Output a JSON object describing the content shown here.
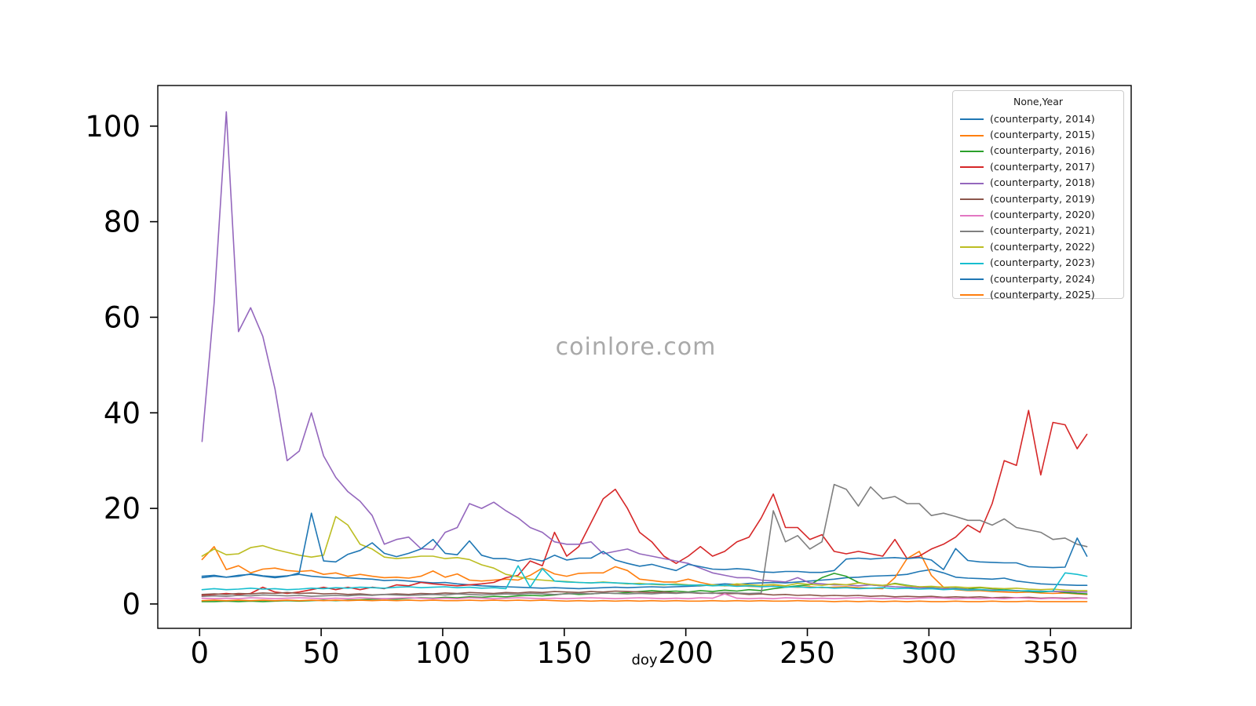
{
  "page": {
    "background": "#ffffff"
  },
  "watermark": {
    "text": "coinlore.com",
    "color": "#a9a9a9"
  },
  "chart_data": {
    "type": "line",
    "title": "",
    "xlabel": "doy",
    "ylabel": "",
    "xlim": [
      -17.2,
      383.2
    ],
    "ylim": [
      -5.1,
      108.5
    ],
    "x_ticks": [
      0,
      50,
      100,
      150,
      200,
      250,
      300,
      350
    ],
    "y_ticks": [
      0,
      20,
      40,
      60,
      80,
      100
    ],
    "grid": false,
    "axis_color": "#000000",
    "legend": {
      "title": "None,Year",
      "location": "upper right"
    },
    "x": [
      1,
      6,
      11,
      16,
      21,
      26,
      31,
      36,
      41,
      46,
      51,
      56,
      61,
      66,
      71,
      76,
      81,
      86,
      91,
      96,
      101,
      106,
      111,
      116,
      121,
      126,
      131,
      136,
      141,
      146,
      151,
      156,
      161,
      166,
      171,
      176,
      181,
      186,
      191,
      196,
      201,
      206,
      211,
      216,
      221,
      226,
      231,
      236,
      241,
      246,
      251,
      256,
      261,
      266,
      271,
      276,
      281,
      286,
      291,
      296,
      301,
      306,
      311,
      316,
      321,
      326,
      331,
      336,
      341,
      346,
      351,
      356,
      361,
      365
    ],
    "series": [
      {
        "name": "(counterparty, 2014)",
        "color": "#1f77b4",
        "values": [
          5.8,
          6.0,
          5.6,
          5.8,
          6.3,
          5.9,
          5.7,
          5.9,
          6.2,
          5.8,
          5.6,
          5.4,
          5.5,
          5.3,
          5.2,
          4.9,
          5.0,
          4.8,
          4.6,
          4.4,
          4.5,
          4.2,
          4.0,
          3.8,
          3.7,
          3.6,
          3.5,
          3.4,
          3.3,
          3.4,
          3.3,
          3.2,
          3.3,
          3.4,
          3.5,
          3.4,
          3.5,
          3.6,
          3.5,
          3.6,
          3.7,
          3.8,
          4.0,
          4.2,
          4.1,
          4.3,
          4.4,
          4.5,
          4.4,
          4.6,
          4.8,
          5.0,
          5.2,
          5.5,
          5.6,
          5.8,
          5.9,
          6.0,
          6.2,
          6.8,
          7.2,
          6.5,
          5.6,
          5.4,
          5.3,
          5.2,
          5.4,
          4.8,
          4.5,
          4.2,
          4.1,
          4.0,
          3.9,
          3.9
        ]
      },
      {
        "name": "(counterparty, 2015)",
        "color": "#ff7f0e",
        "values": [
          9.3,
          12.0,
          7.2,
          8.0,
          6.5,
          7.3,
          7.5,
          7.0,
          6.8,
          7.0,
          6.2,
          6.5,
          5.8,
          6.2,
          5.8,
          5.5,
          5.6,
          5.4,
          5.8,
          6.9,
          5.6,
          6.3,
          5.0,
          4.8,
          5.0,
          5.2,
          5.0,
          6.0,
          7.5,
          6.3,
          5.8,
          6.4,
          6.5,
          6.5,
          7.8,
          7.0,
          5.2,
          4.9,
          4.6,
          4.6,
          5.2,
          4.5,
          4.0,
          3.8,
          3.9,
          3.7,
          3.6,
          3.8,
          3.6,
          3.5,
          3.6,
          3.4,
          3.5,
          3.6,
          3.4,
          3.3,
          3.2,
          5.5,
          9.5,
          11.0,
          6.0,
          3.5,
          3.0,
          2.8,
          2.8,
          2.6,
          2.5,
          2.4,
          2.5,
          2.3,
          2.2,
          2.3,
          2.1,
          2.0
        ]
      },
      {
        "name": "(counterparty, 2016)",
        "color": "#2ca02c",
        "values": [
          0.5,
          0.5,
          0.6,
          0.5,
          0.6,
          0.5,
          0.6,
          0.7,
          0.6,
          0.7,
          0.8,
          0.7,
          0.8,
          0.9,
          1.0,
          1.1,
          1.0,
          1.2,
          1.3,
          1.2,
          1.4,
          1.3,
          1.5,
          1.4,
          1.6,
          1.5,
          1.7,
          1.8,
          1.7,
          1.9,
          2.2,
          2.0,
          2.1,
          2.3,
          2.2,
          2.4,
          2.6,
          2.8,
          2.6,
          2.7,
          2.5,
          2.8,
          2.6,
          2.9,
          2.7,
          3.0,
          2.8,
          3.2,
          3.5,
          3.8,
          4.0,
          5.5,
          6.4,
          5.8,
          4.5,
          4.0,
          3.8,
          4.3,
          3.9,
          3.6,
          3.4,
          3.2,
          3.3,
          3.1,
          3.4,
          3.2,
          3.0,
          2.8,
          2.6,
          2.5,
          2.7,
          2.4,
          2.2,
          2.1
        ]
      },
      {
        "name": "(counterparty, 2017)",
        "color": "#d62728",
        "values": [
          1.8,
          2.0,
          2.2,
          2.0,
          2.2,
          3.5,
          2.5,
          2.2,
          2.5,
          3.0,
          3.5,
          3.0,
          3.5,
          3.0,
          3.5,
          3.2,
          4.0,
          3.8,
          4.5,
          4.2,
          4.0,
          3.8,
          4.0,
          4.2,
          4.5,
          5.5,
          6.0,
          9.0,
          8.0,
          15.0,
          10.0,
          12.0,
          17.0,
          22.0,
          24.0,
          20.0,
          15.0,
          13.0,
          10.0,
          8.5,
          10.0,
          12.0,
          10.0,
          11.0,
          13.0,
          14.0,
          18.0,
          23.0,
          16.0,
          16.0,
          13.5,
          14.5,
          11.0,
          10.5,
          11.0,
          10.5,
          10.0,
          13.5,
          9.5,
          10.0,
          11.5,
          12.5,
          14.0,
          16.5,
          15.0,
          21.0,
          30.0,
          29.0,
          40.5,
          27.0,
          38.0,
          37.5,
          32.5,
          35.5
        ]
      },
      {
        "name": "(counterparty, 2018)",
        "color": "#9467bd",
        "values": [
          34,
          63,
          103,
          57,
          62,
          56,
          45,
          30,
          32,
          40,
          31,
          26.5,
          23.5,
          21.5,
          18.5,
          12.5,
          13.5,
          14,
          11.6,
          11.4,
          15,
          16,
          21,
          20,
          21.3,
          19.5,
          18,
          16,
          15,
          13,
          12.5,
          12.5,
          13,
          10.5,
          11,
          11.5,
          10.5,
          10,
          9.5,
          9,
          8.5,
          7.5,
          6.5,
          6,
          5.5,
          5.5,
          5,
          4.8,
          4.6,
          5.5,
          4.4,
          4.2,
          4.0,
          4.0,
          3.8,
          4.0,
          3.8,
          3.6,
          3.5,
          3.4,
          3.3,
          3.2,
          3.2,
          3.0,
          3.0,
          2.9,
          2.8,
          2.8,
          2.7,
          2.7,
          2.6,
          2.6,
          2.5,
          2.5
        ]
      },
      {
        "name": "(counterparty, 2019)",
        "color": "#8c564b",
        "values": [
          2.0,
          2.1,
          2.0,
          2.2,
          2.1,
          2.3,
          2.2,
          2.4,
          2.2,
          2.3,
          2.1,
          2.2,
          2.0,
          2.1,
          1.9,
          2.0,
          2.1,
          2.0,
          2.2,
          2.1,
          2.3,
          2.2,
          2.4,
          2.3,
          2.2,
          2.4,
          2.3,
          2.5,
          2.4,
          2.6,
          2.5,
          2.4,
          2.6,
          2.5,
          2.7,
          2.6,
          2.5,
          2.4,
          2.5,
          2.3,
          2.4,
          2.2,
          2.3,
          2.1,
          2.2,
          2.0,
          2.1,
          1.9,
          2.0,
          1.8,
          1.9,
          1.7,
          1.8,
          1.7,
          1.8,
          1.6,
          1.7,
          1.5,
          1.6,
          1.5,
          1.6,
          1.4,
          1.5,
          1.4,
          1.5,
          1.3,
          1.4,
          1.3,
          1.4,
          1.2,
          1.3,
          1.2,
          1.3,
          1.2
        ]
      },
      {
        "name": "(counterparty, 2020)",
        "color": "#e377c2",
        "values": [
          1.2,
          1.1,
          1.2,
          1.1,
          1.3,
          1.2,
          1.1,
          1.2,
          1.3,
          1.2,
          1.1,
          1.2,
          1.1,
          1.3,
          1.2,
          1.1,
          1.2,
          1.3,
          1.2,
          1.1,
          1.2,
          1.1,
          1.3,
          1.2,
          1.1,
          1.2,
          1.3,
          1.2,
          1.1,
          1.2,
          1.1,
          1.2,
          1.3,
          1.2,
          1.1,
          1.2,
          1.3,
          1.2,
          1.1,
          1.2,
          1.1,
          1.3,
          1.2,
          2.1,
          1.2,
          1.1,
          1.2,
          1.1,
          1.3,
          1.2,
          1.1,
          1.2,
          1.1,
          1.2,
          1.3,
          1.2,
          1.1,
          1.2,
          1.1,
          1.2,
          1.3,
          1.2,
          1.1,
          1.2,
          1.1,
          1.2,
          1.1,
          1.3,
          1.2,
          1.1,
          1.2,
          1.1,
          1.2,
          1.2
        ]
      },
      {
        "name": "(counterparty, 2021)",
        "color": "#7f7f7f",
        "values": [
          1.6,
          1.7,
          1.6,
          1.8,
          1.7,
          1.9,
          1.8,
          1.7,
          1.8,
          1.6,
          1.7,
          1.8,
          1.7,
          1.9,
          1.8,
          2.0,
          1.9,
          1.8,
          1.9,
          2.0,
          1.9,
          2.1,
          2.0,
          1.9,
          2.0,
          2.1,
          2.0,
          2.2,
          2.1,
          2.0,
          2.1,
          2.2,
          2.1,
          2.3,
          2.2,
          2.1,
          2.2,
          2.1,
          2.3,
          2.2,
          2.4,
          2.3,
          2.2,
          2.4,
          2.3,
          2.2,
          2.3,
          19.5,
          13.0,
          14.3,
          11.5,
          13.0,
          25.0,
          24.0,
          20.5,
          24.5,
          22.0,
          22.5,
          21.0,
          21.0,
          18.5,
          19.0,
          18.3,
          17.5,
          17.5,
          16.5,
          17.8,
          16.0,
          15.5,
          15.0,
          13.5,
          13.8,
          12.5,
          12.0
        ]
      },
      {
        "name": "(counterparty, 2022)",
        "color": "#bcbd22",
        "values": [
          10.0,
          11.5,
          10.3,
          10.5,
          11.8,
          12.2,
          11.4,
          10.8,
          10.2,
          9.8,
          10.2,
          18.3,
          16.5,
          12.5,
          11.5,
          9.8,
          9.5,
          9.7,
          10.0,
          10.0,
          9.5,
          9.7,
          9.3,
          8.2,
          7.5,
          6.2,
          5.7,
          5.2,
          5.0,
          4.8,
          4.7,
          4.5,
          4.4,
          4.6,
          4.4,
          4.2,
          4.3,
          4.1,
          4.0,
          4.2,
          4.0,
          3.9,
          4.0,
          3.8,
          4.2,
          4.0,
          3.9,
          4.1,
          3.8,
          4.3,
          4.1,
          3.9,
          4.2,
          4.0,
          4.4,
          4.1,
          3.9,
          4.2,
          3.8,
          3.6,
          3.7,
          3.5,
          3.6,
          3.4,
          3.5,
          3.3,
          3.2,
          3.3,
          3.1,
          3.0,
          3.1,
          2.9,
          2.8,
          2.8
        ]
      },
      {
        "name": "(counterparty, 2023)",
        "color": "#17becf",
        "values": [
          3.0,
          3.2,
          3.0,
          3.1,
          3.3,
          3.1,
          3.2,
          3.0,
          3.1,
          3.3,
          3.2,
          3.4,
          3.3,
          3.5,
          3.4,
          3.3,
          3.5,
          3.6,
          3.4,
          3.5,
          3.6,
          3.4,
          3.5,
          3.3,
          3.4,
          3.2,
          8.0,
          3.5,
          7.4,
          4.8,
          4.6,
          4.5,
          4.4,
          4.5,
          4.4,
          4.3,
          4.1,
          4.2,
          4.1,
          4.0,
          3.9,
          4.0,
          3.8,
          3.9,
          3.7,
          3.8,
          3.6,
          3.7,
          3.5,
          3.6,
          3.4,
          3.5,
          3.3,
          3.4,
          3.2,
          3.3,
          3.4,
          3.2,
          3.3,
          3.1,
          3.2,
          3.0,
          3.1,
          2.9,
          3.0,
          2.8,
          2.9,
          2.7,
          2.8,
          2.6,
          2.7,
          6.5,
          6.2,
          5.8
        ]
      },
      {
        "name": "(counterparty, 2024)",
        "color": "#1f77b4",
        "values": [
          5.5,
          5.8,
          5.6,
          6.0,
          6.2,
          5.8,
          5.5,
          5.8,
          6.5,
          19.0,
          9.0,
          8.8,
          10.4,
          11.2,
          12.8,
          10.6,
          9.9,
          10.6,
          11.5,
          13.5,
          10.6,
          10.3,
          13.2,
          10.2,
          9.5,
          9.5,
          9.0,
          9.5,
          9.0,
          10.2,
          9.2,
          9.6,
          9.6,
          11.0,
          9.2,
          8.5,
          7.9,
          8.3,
          7.6,
          7.0,
          8.3,
          7.8,
          7.3,
          7.2,
          7.4,
          7.2,
          6.7,
          6.6,
          6.8,
          6.8,
          6.6,
          6.6,
          7.0,
          9.4,
          9.6,
          9.4,
          9.6,
          9.7,
          9.5,
          9.7,
          9.2,
          7.2,
          11.6,
          9.1,
          8.8,
          8.7,
          8.6,
          8.6,
          7.8,
          7.7,
          7.6,
          7.7,
          13.8,
          10.0
        ]
      },
      {
        "name": "(counterparty, 2025)",
        "color": "#ff7f0e",
        "values": [
          0.7,
          0.8,
          0.7,
          0.8,
          0.7,
          0.8,
          0.7,
          0.8,
          0.7,
          0.8,
          0.7,
          0.8,
          0.7,
          0.8,
          0.7,
          0.8,
          0.7,
          0.8,
          0.7,
          0.8,
          0.7,
          0.7,
          0.8,
          0.7,
          0.8,
          0.7,
          0.8,
          0.7,
          0.8,
          0.7,
          0.6,
          0.7,
          0.6,
          0.7,
          0.6,
          0.7,
          0.6,
          0.7,
          0.6,
          0.7,
          0.6,
          0.6,
          0.7,
          0.6,
          0.7,
          0.6,
          0.7,
          0.6,
          0.6,
          0.7,
          0.6,
          0.6,
          0.5,
          0.6,
          0.5,
          0.6,
          0.5,
          0.6,
          0.5,
          0.6,
          0.5,
          0.5,
          0.6,
          0.5,
          0.5,
          0.6,
          0.5,
          0.5,
          0.6,
          0.5,
          0.5,
          0.5,
          0.5,
          0.5
        ]
      }
    ]
  }
}
